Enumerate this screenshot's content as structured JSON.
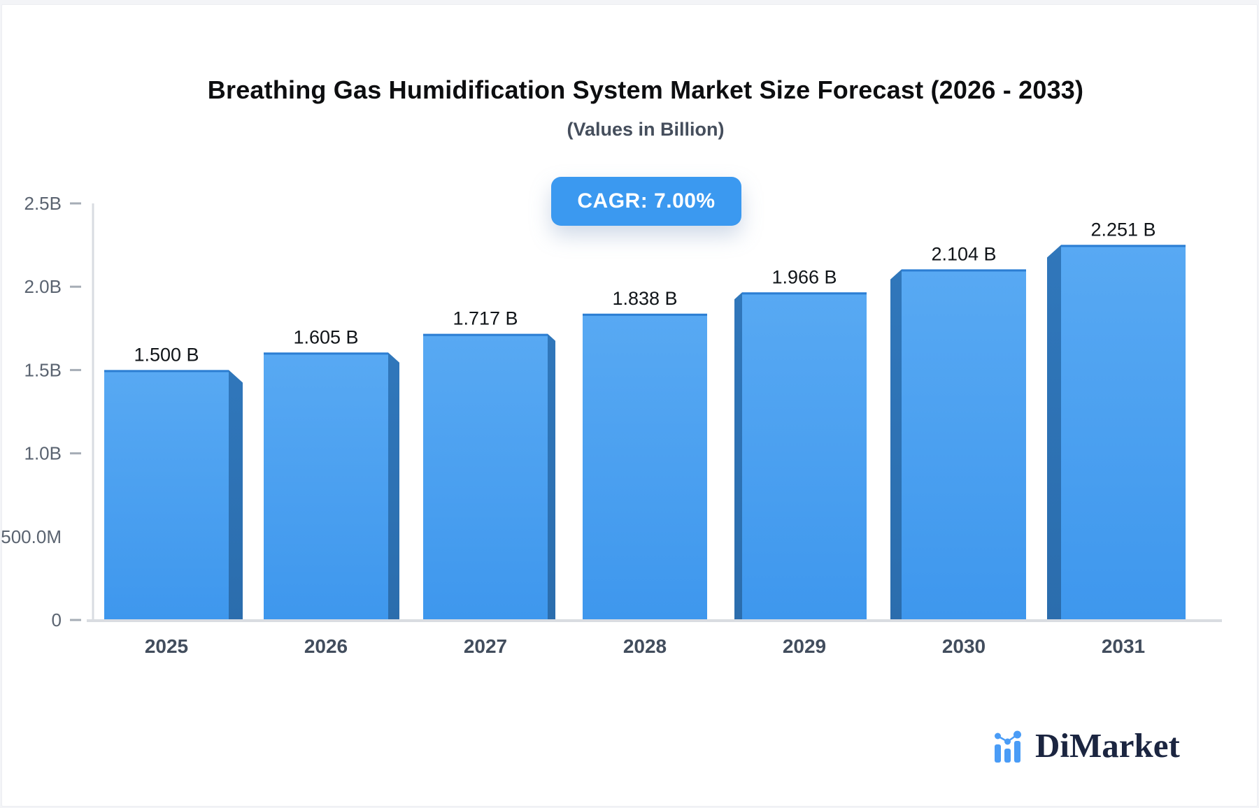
{
  "header": {
    "title": "Breathing Gas Humidification System Market Size Forecast (2026 - 2033)",
    "subtitle": "(Values in Billion)"
  },
  "badge": {
    "label": "CAGR: 7.00%"
  },
  "brand": {
    "name": "DiMarket"
  },
  "chart_data": {
    "type": "bar",
    "title": "Breathing Gas Humidification System Market Size Forecast (2026 - 2033)",
    "subtitle": "(Values in Billion)",
    "cagr": "CAGR: 7.00%",
    "categories": [
      "2025",
      "2026",
      "2027",
      "2028",
      "2029",
      "2030",
      "2031"
    ],
    "values": [
      1.5,
      1.605,
      1.717,
      1.838,
      1.966,
      2.104,
      2.251
    ],
    "value_labels": [
      "1.500 B",
      "1.605 B",
      "1.717 B",
      "1.838 B",
      "1.966 B",
      "2.104 B",
      "2.251 B"
    ],
    "unit": "Billion",
    "ylim": [
      0,
      2.5
    ],
    "yticks": [
      {
        "label": "2.5B",
        "value": 2.5,
        "dash": true
      },
      {
        "label": "2.0B",
        "value": 2.0,
        "dash": true
      },
      {
        "label": "1.5B",
        "value": 1.5,
        "dash": true
      },
      {
        "label": "1.0B",
        "value": 1.0,
        "dash": true
      },
      {
        "label": "500.0M",
        "value": 0.5,
        "dash": false
      },
      {
        "label": "0",
        "value": 0.0,
        "dash": true
      }
    ],
    "grid": false,
    "legend": "none",
    "colors": {
      "bar_face_top": "#58a9f3",
      "bar_face_bottom": "#3e97ed",
      "bar_top_edge": "#2c7ed3",
      "bar_side_top": "#3077bb",
      "bar_side_bottom": "#2b6dad",
      "axis_line": "#d9dce1",
      "tick_dash": "#a6adb6",
      "badge_bg": "#3b99f0",
      "logo_blue": "#4a9cf6",
      "logo_text": "#1b2540"
    }
  }
}
